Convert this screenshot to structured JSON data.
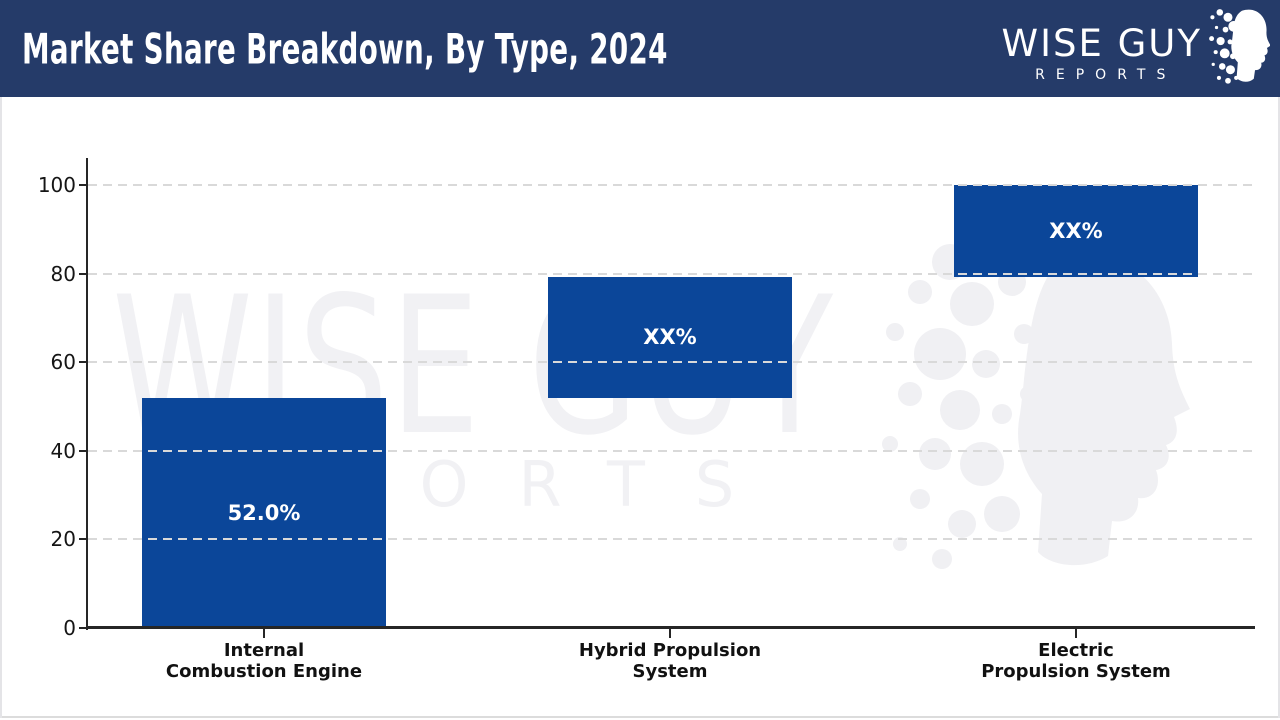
{
  "header": {
    "title": "Market Share Breakdown, By Type, 2024",
    "background": "#253b69",
    "logo": {
      "line1": "WISE GUY",
      "line2": "REPORTS"
    }
  },
  "watermark": {
    "line1": "WISE GUY",
    "line2": "REPORTS"
  },
  "chart_data": {
    "type": "bar",
    "subtype": "waterfall",
    "title": "Market Share Breakdown, By Type, 2024",
    "categories": [
      "Internal Combustion Engine",
      "Hybrid Propulsion System",
      "Electric Propulsion System"
    ],
    "categories_lines": [
      [
        "Internal",
        "Combustion Engine"
      ],
      [
        "Hybrid Propulsion",
        "System"
      ],
      [
        "Electric",
        "Propulsion System"
      ]
    ],
    "values": [
      52.0,
      27.2,
      20.8
    ],
    "value_labels": [
      "52.0%",
      "XX%",
      "XX%"
    ],
    "bar_ranges": [
      [
        0,
        52.0
      ],
      [
        52.0,
        79.2
      ],
      [
        79.2,
        100
      ]
    ],
    "xlabel": "",
    "ylabel": "",
    "ylim": [
      0,
      100
    ],
    "yticks": [
      0,
      20,
      40,
      60,
      80,
      100
    ],
    "grid": "horizontal-dashed",
    "legend": false,
    "bar_color": "#0b4699",
    "bar_label_color": "#ffffff",
    "axis_color": "#262626",
    "grid_color": "#d9d9d9",
    "tick_label_color": "#151515"
  }
}
